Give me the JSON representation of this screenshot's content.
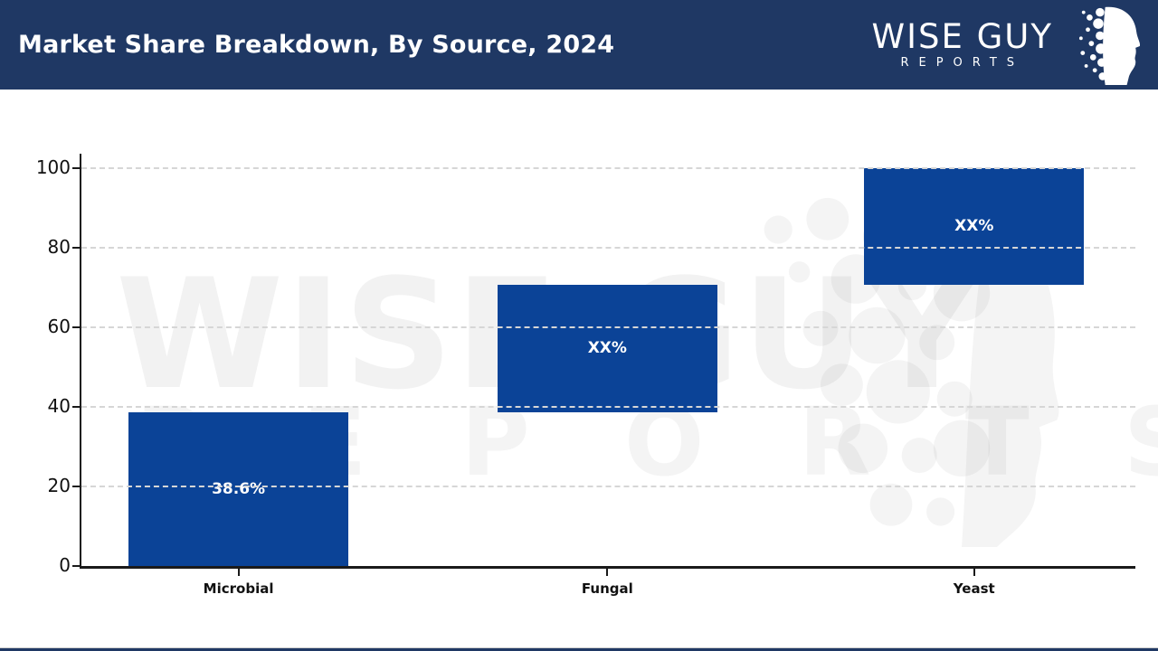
{
  "header": {
    "title": "Market Share Breakdown, By Source, 2024",
    "background_color": "#1F3864",
    "logo": {
      "line1": "WISE GUY",
      "line2": "REPORTS"
    }
  },
  "watermark": {
    "line1": "WISE GUY",
    "line2": "R E P O R T S"
  },
  "chart_data": {
    "type": "bar",
    "subtype": "floating-waterfall",
    "title": "Market Share Breakdown, By Source, 2024",
    "categories": [
      "Microbial",
      "Fungal",
      "Yeast"
    ],
    "bars": [
      {
        "category": "Microbial",
        "start": 0,
        "end": 38.6,
        "label": "38.6%"
      },
      {
        "category": "Fungal",
        "start": 38.6,
        "end": 70.7,
        "label": "XX%"
      },
      {
        "category": "Yeast",
        "start": 70.7,
        "end": 100,
        "label": "XX%"
      }
    ],
    "xlabel": "",
    "ylabel": "",
    "y_ticks": [
      0,
      20,
      40,
      60,
      80,
      100
    ],
    "ylim": [
      0,
      103.6
    ],
    "grid": "dashed-horizontal",
    "legend": "none",
    "bar_color": "#0B4397",
    "bar_label_color": "#ffffff",
    "axis_color": "#1a1a1a",
    "grid_color": "#d6d6d6",
    "layout": {
      "bar_centers_pct": [
        14.9,
        49.9,
        84.7
      ],
      "bar_width_pct": 20.9
    }
  },
  "footer": {
    "strip_color": "#1F3864"
  }
}
